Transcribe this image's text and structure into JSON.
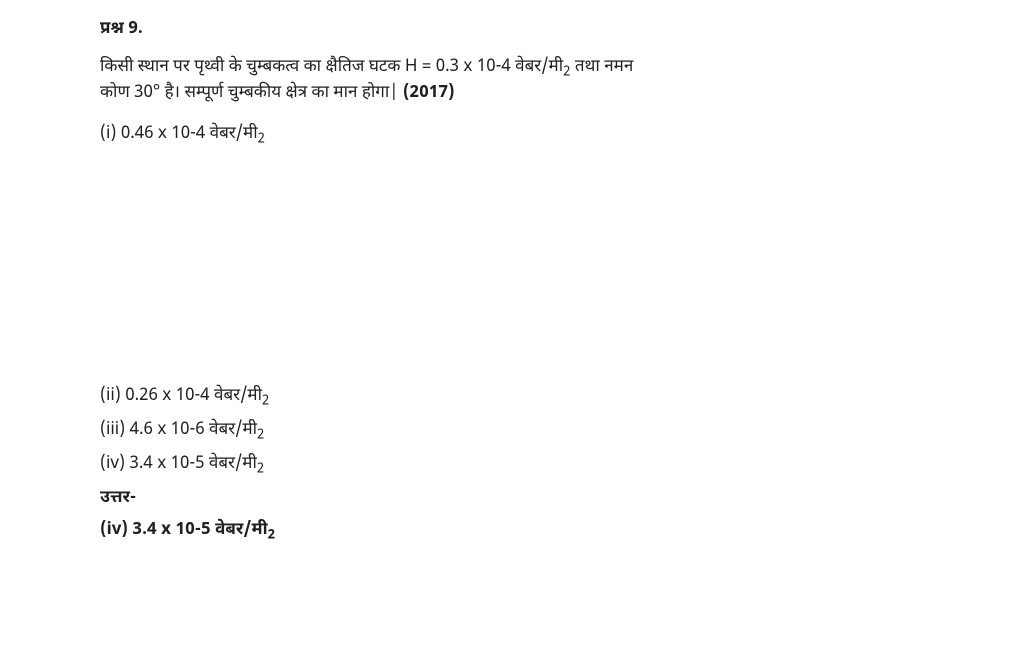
{
  "question_number": "प्रश्न 9.",
  "question_line1": "किसी स्थान पर पृथ्वी के चुम्बकत्व का क्षैतिज घटक H = 0.3 x 10-4 वेबर/मी",
  "question_line1_sub": "2",
  "question_line1_tail": " तथा नमन",
  "question_line2_a": "कोण 30° है। सम्पूर्ण चुम्बकीय क्षेत्र का मान होगा| ",
  "question_year": "(2017)",
  "options": {
    "i": {
      "label": "(i) 0.46 x 10-4 वेबर/मी",
      "sub": "2"
    },
    "ii": {
      "label": "(ii) 0.26 x 10-4 वेबर/मी",
      "sub": "2"
    },
    "iii": {
      "label": "(iii) 4.6 x 10-6 वेबर/मी",
      "sub": "2"
    },
    "iv": {
      "label": "(iv) 3.4 x 10-5 वेबर/मी",
      "sub": "2"
    }
  },
  "answer_label": "उत्तर-",
  "answer_value": {
    "label": "(iv) 3.4 x 10-5 वेबर/मी",
    "sub": "2"
  },
  "colors": {
    "text": "#212121",
    "background": "#ffffff"
  }
}
